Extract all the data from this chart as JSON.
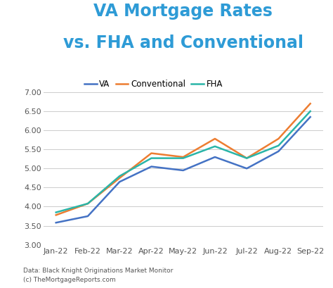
{
  "title_line1": "VA Mortgage Rates",
  "title_line2": "vs. FHA and Conventional",
  "title_color": "#2E9BD6",
  "categories": [
    "Jan-22",
    "Feb-22",
    "Mar-22",
    "Apr-22",
    "May-22",
    "Jun-22",
    "Jul-22",
    "Aug-22",
    "Sep-22"
  ],
  "va": [
    3.58,
    3.75,
    4.65,
    5.05,
    4.95,
    5.3,
    5.0,
    5.45,
    6.35
  ],
  "conventional": [
    3.78,
    4.08,
    4.75,
    5.4,
    5.3,
    5.78,
    5.27,
    5.78,
    6.7
  ],
  "fha": [
    3.85,
    4.08,
    4.8,
    5.27,
    5.27,
    5.58,
    5.27,
    5.6,
    6.5
  ],
  "va_color": "#4472C4",
  "conventional_color": "#ED7D31",
  "fha_color": "#2AB5A8",
  "ylim": [
    3.0,
    7.0
  ],
  "yticks": [
    3.0,
    3.5,
    4.0,
    4.5,
    5.0,
    5.5,
    6.0,
    6.5,
    7.0
  ],
  "background_color": "#FFFFFF",
  "grid_color": "#CCCCCC",
  "footnote1": "Data: Black Knight Originations Market Monitor",
  "footnote2": "(c) TheMortgageReports.com",
  "legend_labels": [
    "VA",
    "Conventional",
    "FHA"
  ],
  "title_fontsize": 17,
  "tick_fontsize": 8,
  "footnote_fontsize": 6.5
}
